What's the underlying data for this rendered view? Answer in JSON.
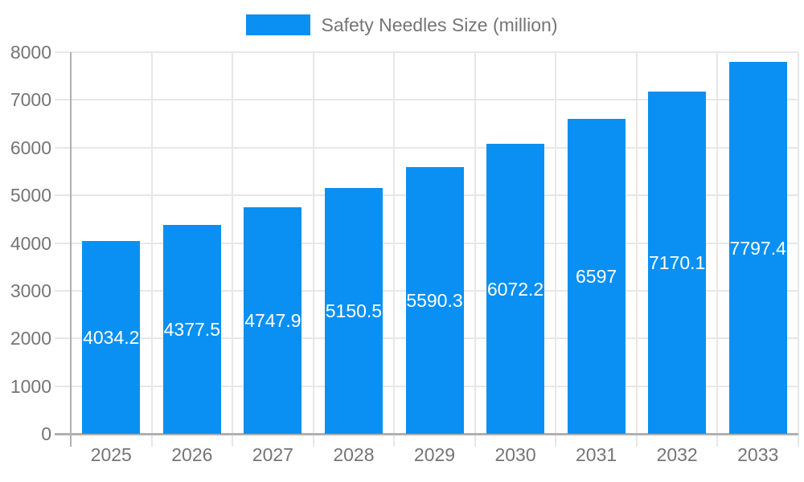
{
  "chart_data": {
    "type": "bar",
    "title": "",
    "legend": "Safety Needles Size (million)",
    "legend_position": "top",
    "categories": [
      "2025",
      "2026",
      "2027",
      "2028",
      "2029",
      "2030",
      "2031",
      "2032",
      "2033"
    ],
    "series": [
      {
        "name": "Safety Needles Size (million)",
        "values": [
          4034.2,
          4377.5,
          4747.9,
          5150.5,
          5590.3,
          6072.2,
          6597,
          7170.1,
          7797.4
        ]
      }
    ],
    "xlabel": "",
    "ylabel": "",
    "ylim": [
      0,
      8000
    ],
    "y_ticks": [
      0,
      1000,
      2000,
      3000,
      4000,
      5000,
      6000,
      7000,
      8000
    ],
    "grid": true,
    "bar_value_labels_visible": true,
    "colors": {
      "bar": "#0a90f2",
      "axis_text": "#757575",
      "bar_label_text": "#ffffff",
      "gridline": "#e7e7e7",
      "axis_line": "#b0b0b0",
      "background": "#ffffff"
    }
  }
}
